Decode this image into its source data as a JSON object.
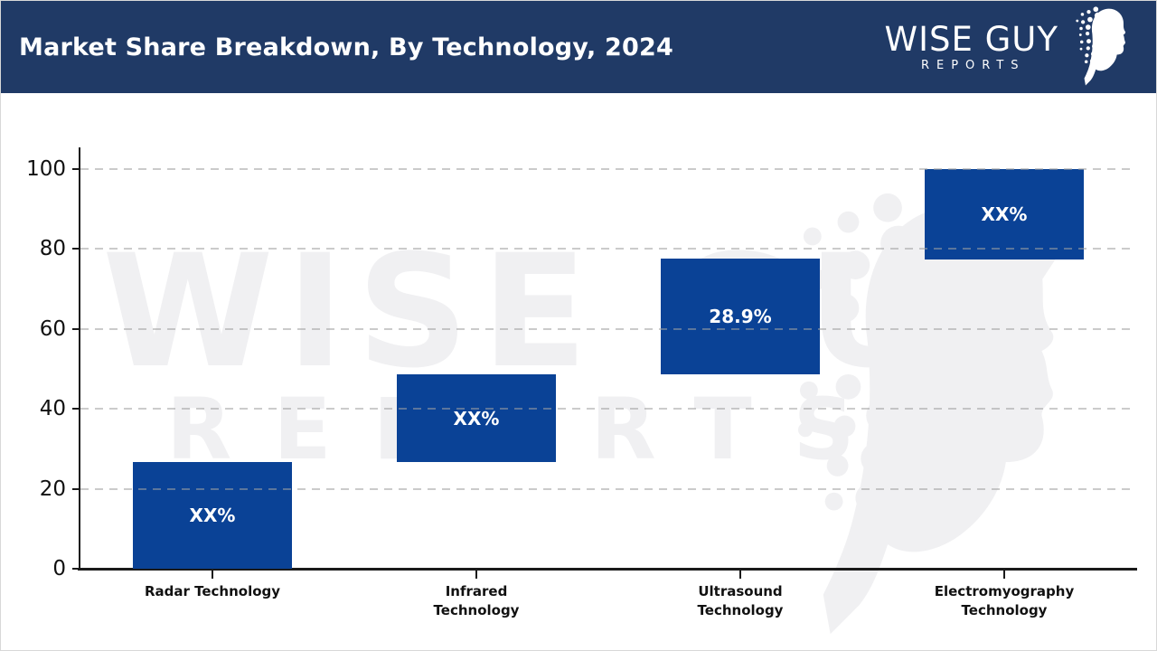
{
  "header": {
    "title": "Market Share Breakdown, By Technology, 2024",
    "logo": {
      "brand": "WISE GUY",
      "sub": "REPORTS"
    }
  },
  "watermark": {
    "brand": "WISE GUY",
    "sub": "REPORTS"
  },
  "colors": {
    "header_bg": "#203a66",
    "bar": "#0a4296",
    "axis": "#1a1a1a",
    "grid": "rgba(160,160,160,0.55)",
    "bar_label": "#ffffff",
    "tick_label": "#111111",
    "watermark": "#f0f0f2"
  },
  "chart_data": {
    "type": "bar",
    "subtype": "floating-segment-waterfall",
    "title": "Market Share Breakdown, By Technology, 2024",
    "categories": [
      "Radar Technology",
      "Infrared Technology",
      "Ultrasound Technology",
      "Electromyography Technology"
    ],
    "category_label_lines": [
      [
        "Radar Technology"
      ],
      [
        "Infrared",
        "Technology"
      ],
      [
        "Ultrasound",
        "Technology"
      ],
      [
        "Electromyography",
        "Technology"
      ]
    ],
    "series": [
      {
        "name": "Market share (%)",
        "segments": [
          {
            "category": "Radar Technology",
            "start": 0,
            "end": 26.7,
            "label": "XX%"
          },
          {
            "category": "Infrared Technology",
            "start": 26.7,
            "end": 48.6,
            "label": "XX%"
          },
          {
            "category": "Ultrasound Technology",
            "start": 48.6,
            "end": 77.5,
            "label": "28.9%"
          },
          {
            "category": "Electromyography Technology",
            "start": 77.5,
            "end": 100,
            "label": "XX%"
          }
        ]
      }
    ],
    "ylim": [
      0,
      100
    ],
    "yticks": [
      0,
      20,
      40,
      60,
      80,
      100
    ],
    "xlabel": "",
    "ylabel": "",
    "units": "%",
    "grid": "horizontal-dashed",
    "legend": "none"
  }
}
